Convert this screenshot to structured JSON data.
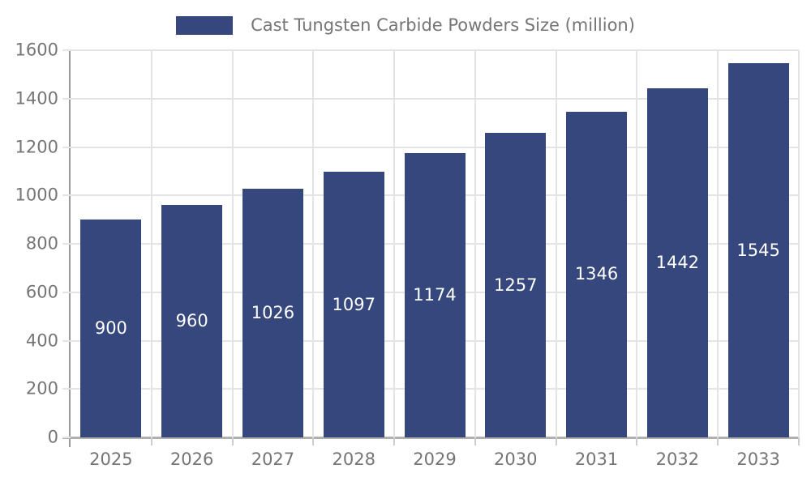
{
  "legend": {
    "label": "Cast Tungsten Carbide Powders Size (million)"
  },
  "chart_data": {
    "type": "bar",
    "title": "Cast Tungsten Carbide Powders Size (million)",
    "series_name": "Cast Tungsten Carbide Powders Size (million)",
    "categories": [
      "2025",
      "2026",
      "2027",
      "2028",
      "2029",
      "2030",
      "2031",
      "2032",
      "2033"
    ],
    "values": [
      900,
      960,
      1026,
      1097,
      1174,
      1257,
      1346,
      1442,
      1545
    ],
    "xlabel": "",
    "ylabel": "",
    "ylim": [
      0,
      1600
    ],
    "yticks": [
      0,
      200,
      400,
      600,
      800,
      1000,
      1200,
      1400,
      1600
    ],
    "grid": true,
    "legend_position": "top-center",
    "value_labels": "inside-center",
    "colors": {
      "bar": "#35477d",
      "grid": "#e4e4e4",
      "axis": "#999999",
      "baseline": "#b0b0b0",
      "tick_text": "#757575",
      "value_text": "#ffffff"
    }
  }
}
